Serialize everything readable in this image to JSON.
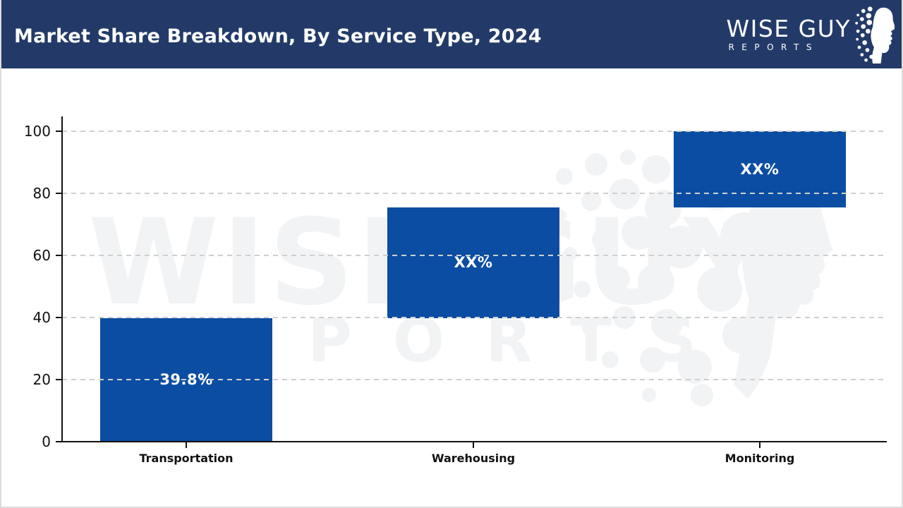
{
  "header": {
    "title": "Market Share Breakdown, By Service Type, 2024",
    "brand": {
      "name_top": "WISE GUY",
      "name_bottom": "REPORTS"
    }
  },
  "watermark": {
    "line1": "WISE GUY",
    "line2": "REPORTS"
  },
  "icons": {
    "brand_face": "dotted-face-profile-icon",
    "watermark_face": "dotted-face-profile-watermark"
  },
  "colors": {
    "header_bg": "#233a69",
    "bar": "#0b4da2",
    "bar_label": "#ffffff",
    "grid": "#cfcfcf",
    "axis": "#111111",
    "watermark": "#f2f3f5",
    "page_border": "#dcdcdc"
  },
  "chart_data": {
    "type": "bar",
    "subtype": "waterfall",
    "title": "Market Share Breakdown, By Service Type, 2024",
    "categories": [
      "Transportation",
      "Warehousing",
      "Monitoring"
    ],
    "segments": [
      {
        "category": "Transportation",
        "start": 0,
        "end": 39.8,
        "label": "39.8%"
      },
      {
        "category": "Warehousing",
        "start": 39.8,
        "end": 75.5,
        "label": "XX%"
      },
      {
        "category": "Monitoring",
        "start": 75.5,
        "end": 100,
        "label": "XX%"
      }
    ],
    "yticks": [
      0,
      20,
      40,
      60,
      80,
      100
    ],
    "ylim": [
      0,
      104
    ],
    "xlabel": "",
    "ylabel": "",
    "grid": {
      "axis": "y",
      "style": "dashed",
      "above_bars": true
    },
    "legend": null
  }
}
